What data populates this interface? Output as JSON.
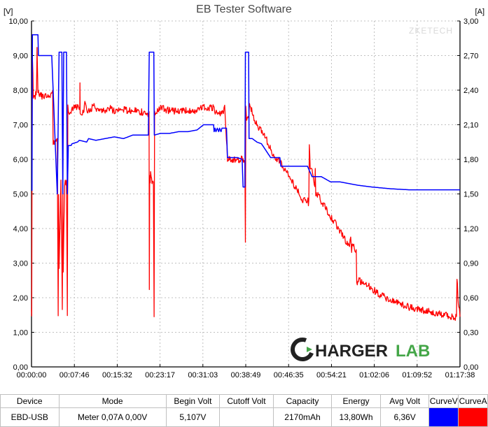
{
  "chart": {
    "type": "line",
    "title": "EB Tester Software",
    "title_fontsize": 16,
    "title_color": "#4a4a4a",
    "watermark": "ZKETECH",
    "watermark_color": "#d9d9d9",
    "background_color": "#ffffff",
    "grid_color": "#c0c0c0",
    "grid_style": "dashed",
    "axis_color": "#000000",
    "axis_fontsize": 11,
    "left_axis": {
      "label": "[V]",
      "min": 0.0,
      "max": 10.0,
      "step": 1.0,
      "ticks": [
        "0,00",
        "1,00",
        "2,00",
        "3,00",
        "4,00",
        "5,00",
        "6,00",
        "7,00",
        "8,00",
        "9,00",
        "10,00"
      ]
    },
    "right_axis": {
      "label": "[A]",
      "min": 0.0,
      "max": 3.0,
      "step": 0.3,
      "ticks": [
        "0,00",
        "0,30",
        "0,60",
        "0,90",
        "1,20",
        "1,50",
        "1,80",
        "2,10",
        "2,40",
        "2,70",
        "3,00"
      ]
    },
    "x_axis": {
      "min_sec": 0,
      "max_sec": 4658,
      "ticks_sec": [
        0,
        466,
        932,
        1397,
        1863,
        2329,
        2795,
        3261,
        3726,
        4192,
        4658
      ],
      "tick_labels": [
        "00:00:00",
        "00:07:46",
        "00:15:32",
        "00:23:17",
        "00:31:03",
        "00:38:49",
        "00:46:35",
        "00:54:21",
        "01:02:06",
        "01:09:52",
        "01:17:38"
      ]
    },
    "series": {
      "voltage": {
        "name": "CurveV",
        "color": "#0000ff",
        "line_width": 1.5,
        "y_axis": "left",
        "points_sec_val": [
          [
            0,
            5.1
          ],
          [
            5,
            5.1
          ],
          [
            10,
            9.6
          ],
          [
            70,
            9.6
          ],
          [
            75,
            9.0
          ],
          [
            120,
            9.0
          ],
          [
            220,
            9.0
          ],
          [
            280,
            5.0
          ],
          [
            300,
            9.1
          ],
          [
            330,
            9.1
          ],
          [
            340,
            5.0
          ],
          [
            350,
            9.1
          ],
          [
            380,
            9.1
          ],
          [
            390,
            5.0
          ],
          [
            400,
            6.4
          ],
          [
            430,
            6.4
          ],
          [
            440,
            6.45
          ],
          [
            500,
            6.5
          ],
          [
            520,
            6.55
          ],
          [
            600,
            6.5
          ],
          [
            620,
            6.6
          ],
          [
            700,
            6.55
          ],
          [
            800,
            6.6
          ],
          [
            900,
            6.65
          ],
          [
            1000,
            6.6
          ],
          [
            1100,
            6.7
          ],
          [
            1200,
            6.7
          ],
          [
            1270,
            6.7
          ],
          [
            1280,
            9.1
          ],
          [
            1330,
            9.1
          ],
          [
            1335,
            6.7
          ],
          [
            1400,
            6.75
          ],
          [
            1500,
            6.75
          ],
          [
            1600,
            6.8
          ],
          [
            1700,
            6.8
          ],
          [
            1800,
            6.85
          ],
          [
            1870,
            7.0
          ],
          [
            1980,
            7.0
          ],
          [
            1985,
            6.8
          ],
          [
            1995,
            6.9
          ],
          [
            2005,
            6.8
          ],
          [
            2020,
            6.9
          ],
          [
            2035,
            6.8
          ],
          [
            2045,
            6.9
          ],
          [
            2060,
            6.8
          ],
          [
            2070,
            6.9
          ],
          [
            2120,
            6.9
          ],
          [
            2130,
            6.05
          ],
          [
            2230,
            6.05
          ],
          [
            2240,
            6.05
          ],
          [
            2290,
            6.0
          ],
          [
            2300,
            5.2
          ],
          [
            2320,
            5.2
          ],
          [
            2325,
            9.1
          ],
          [
            2360,
            9.1
          ],
          [
            2365,
            6.6
          ],
          [
            2400,
            6.6
          ],
          [
            2450,
            6.5
          ],
          [
            2500,
            6.45
          ],
          [
            2600,
            6.05
          ],
          [
            2700,
            6.05
          ],
          [
            2710,
            5.8
          ],
          [
            2800,
            5.8
          ],
          [
            2900,
            5.8
          ],
          [
            3000,
            5.8
          ],
          [
            3050,
            5.5
          ],
          [
            3100,
            5.5
          ],
          [
            3150,
            5.5
          ],
          [
            3250,
            5.35
          ],
          [
            3350,
            5.35
          ],
          [
            3450,
            5.3
          ],
          [
            3550,
            5.25
          ],
          [
            3700,
            5.2
          ],
          [
            3900,
            5.15
          ],
          [
            4100,
            5.12
          ],
          [
            4300,
            5.12
          ],
          [
            4500,
            5.12
          ],
          [
            4658,
            5.12
          ]
        ]
      },
      "current": {
        "name": "CurveA",
        "color": "#ff0000",
        "line_width": 1.3,
        "y_axis": "right",
        "noise": 0.03,
        "points_sec_val": [
          [
            0,
            0.5
          ],
          [
            2,
            0.45
          ],
          [
            8,
            2.7
          ],
          [
            10,
            2.7
          ],
          [
            20,
            2.35
          ],
          [
            40,
            2.35
          ],
          [
            55,
            2.4
          ],
          [
            60,
            2.75
          ],
          [
            70,
            2.4
          ],
          [
            80,
            2.35
          ],
          [
            120,
            2.35
          ],
          [
            220,
            2.35
          ],
          [
            230,
            2.4
          ],
          [
            235,
            1.95
          ],
          [
            260,
            1.95
          ],
          [
            280,
            2.0
          ],
          [
            290,
            0.45
          ],
          [
            295,
            1.5
          ],
          [
            300,
            0.85
          ],
          [
            320,
            1.6
          ],
          [
            330,
            0.85
          ],
          [
            335,
            0.5
          ],
          [
            340,
            1.55
          ],
          [
            345,
            0.85
          ],
          [
            360,
            1.6
          ],
          [
            380,
            1.6
          ],
          [
            390,
            0.45
          ],
          [
            395,
            2.25
          ],
          [
            400,
            2.2
          ],
          [
            430,
            2.2
          ],
          [
            450,
            2.25
          ],
          [
            525,
            2.25
          ],
          [
            527,
            2.45
          ],
          [
            529,
            2.2
          ],
          [
            570,
            2.2
          ],
          [
            580,
            2.3
          ],
          [
            600,
            2.22
          ],
          [
            660,
            2.25
          ],
          [
            680,
            2.3
          ],
          [
            700,
            2.22
          ],
          [
            800,
            2.22
          ],
          [
            840,
            2.25
          ],
          [
            900,
            2.22
          ],
          [
            960,
            2.25
          ],
          [
            1050,
            2.22
          ],
          [
            1150,
            2.22
          ],
          [
            1250,
            2.2
          ],
          [
            1278,
            2.2
          ],
          [
            1281,
            0.7
          ],
          [
            1285,
            1.65
          ],
          [
            1290,
            1.58
          ],
          [
            1295,
            1.7
          ],
          [
            1310,
            1.6
          ],
          [
            1325,
            1.6
          ],
          [
            1333,
            0.45
          ],
          [
            1338,
            2.2
          ],
          [
            1400,
            2.25
          ],
          [
            1500,
            2.22
          ],
          [
            1600,
            2.22
          ],
          [
            1720,
            2.22
          ],
          [
            1800,
            2.22
          ],
          [
            1870,
            2.25
          ],
          [
            1980,
            2.25
          ],
          [
            1990,
            2.2
          ],
          [
            2040,
            2.2
          ],
          [
            2080,
            2.2
          ],
          [
            2100,
            2.25
          ],
          [
            2130,
            1.8
          ],
          [
            2230,
            1.8
          ],
          [
            2240,
            1.8
          ],
          [
            2300,
            1.8
          ],
          [
            2310,
            1.8
          ],
          [
            2320,
            1.78
          ],
          [
            2325,
            1.1
          ],
          [
            2330,
            2.25
          ],
          [
            2340,
            2.15
          ],
          [
            2360,
            2.15
          ],
          [
            2370,
            2.3
          ],
          [
            2400,
            2.2
          ],
          [
            2450,
            2.1
          ],
          [
            2500,
            2.05
          ],
          [
            2550,
            1.98
          ],
          [
            2600,
            1.88
          ],
          [
            2650,
            1.82
          ],
          [
            2700,
            1.78
          ],
          [
            2750,
            1.72
          ],
          [
            2800,
            1.65
          ],
          [
            2850,
            1.58
          ],
          [
            2900,
            1.52
          ],
          [
            2950,
            1.45
          ],
          [
            3000,
            1.42
          ],
          [
            3005,
            1.45
          ],
          [
            3010,
            1.4
          ],
          [
            3015,
            1.42
          ],
          [
            3020,
            1.95
          ],
          [
            3030,
            1.7
          ],
          [
            3050,
            1.72
          ],
          [
            3080,
            1.55
          ],
          [
            3085,
            1.75
          ],
          [
            3090,
            1.5
          ],
          [
            3120,
            1.5
          ],
          [
            3150,
            1.42
          ],
          [
            3200,
            1.38
          ],
          [
            3250,
            1.3
          ],
          [
            3300,
            1.25
          ],
          [
            3350,
            1.18
          ],
          [
            3400,
            1.12
          ],
          [
            3450,
            1.05
          ],
          [
            3470,
            1.1
          ],
          [
            3480,
            1.0
          ],
          [
            3490,
            1.08
          ],
          [
            3510,
            1.02
          ],
          [
            3530,
            1.0
          ],
          [
            3535,
            0.72
          ],
          [
            3560,
            0.75
          ],
          [
            3600,
            0.73
          ],
          [
            3650,
            0.72
          ],
          [
            3700,
            0.68
          ],
          [
            3750,
            0.65
          ],
          [
            3800,
            0.62
          ],
          [
            3850,
            0.6
          ],
          [
            3900,
            0.58
          ],
          [
            3950,
            0.57
          ],
          [
            4000,
            0.55
          ],
          [
            4100,
            0.52
          ],
          [
            4200,
            0.5
          ],
          [
            4300,
            0.48
          ],
          [
            4400,
            0.47
          ],
          [
            4500,
            0.45
          ],
          [
            4600,
            0.43
          ],
          [
            4620,
            0.43
          ],
          [
            4625,
            0.78
          ],
          [
            4640,
            0.55
          ],
          [
            4658,
            0.45
          ]
        ]
      }
    },
    "logo": {
      "text_left": "HARGER",
      "text_right": "LAB",
      "color_dark": "#222222",
      "color_accent": "#44a648",
      "fontsize": 24
    }
  },
  "table": {
    "columns": [
      "Device",
      "Mode",
      "Begin Volt",
      "Cutoff Volt",
      "Capacity",
      "Energy",
      "Avg Volt",
      "CurveV",
      "CurveA"
    ],
    "col_widths_pct": [
      12,
      22,
      11,
      11,
      12,
      10,
      10,
      6,
      6
    ],
    "row": {
      "device": "EBD-USB",
      "mode": "Meter 0,07A 0,00V",
      "begin_volt": "5,107V",
      "cutoff_volt": "",
      "capacity": "2170mAh",
      "energy": "13,80Wh",
      "avg_volt": "6,36V"
    },
    "swatch_v": "#0000ff",
    "swatch_a": "#ff0000"
  }
}
